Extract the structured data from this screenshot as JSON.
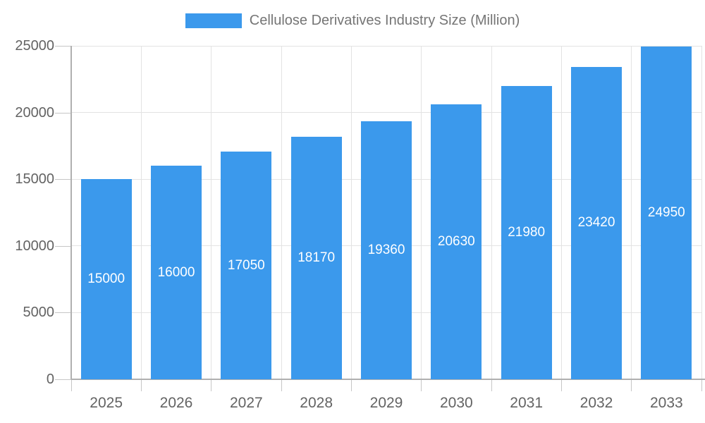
{
  "chart_data": {
    "type": "bar",
    "title": "Cellulose Derivatives Industry Size (Million)",
    "legend": {
      "position": "top",
      "label": "Cellulose Derivatives Industry Size (Million)"
    },
    "categories": [
      "2025",
      "2026",
      "2027",
      "2028",
      "2029",
      "2030",
      "2031",
      "2032",
      "2033"
    ],
    "series": [
      {
        "name": "Cellulose Derivatives Industry Size (Million)",
        "values": [
          15000,
          16000,
          17050,
          18170,
          19360,
          20630,
          21980,
          23420,
          24950
        ]
      }
    ],
    "xlabel": "",
    "ylabel": "",
    "ylim": [
      0,
      25000
    ],
    "y_ticks": [
      0,
      5000,
      10000,
      15000,
      20000,
      25000
    ],
    "grid": true,
    "colors": {
      "bar": "#3B99EC",
      "value_label": "#FFFFFF",
      "axis_text": "#636363",
      "legend_text": "#757575",
      "grid_line": "#E3E3E3",
      "tick_line": "#C6C6C6",
      "axis_line": "#B0B0B0"
    }
  }
}
